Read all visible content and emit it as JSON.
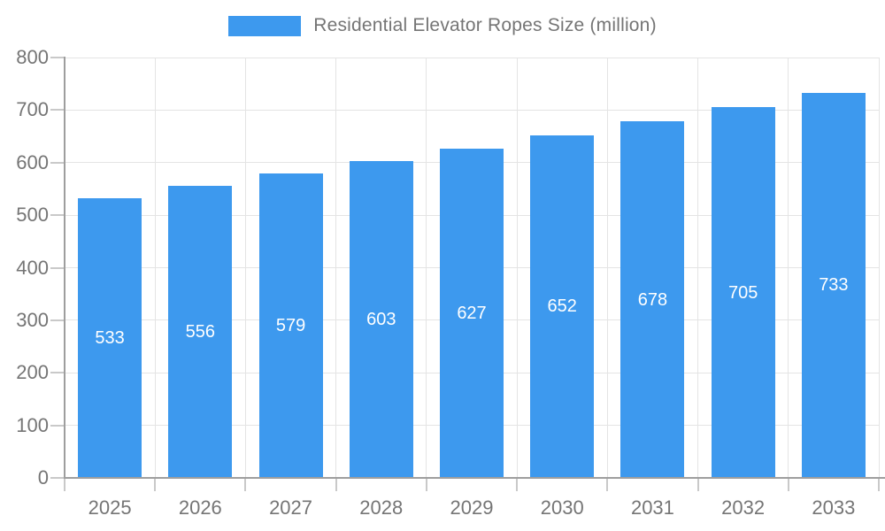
{
  "legend": {
    "label": "Residential Elevator Ropes Size (million)"
  },
  "chart_data": {
    "type": "bar",
    "title": "Residential Elevator Ropes Size (million)",
    "categories": [
      "2025",
      "2026",
      "2027",
      "2028",
      "2029",
      "2030",
      "2031",
      "2032",
      "2033"
    ],
    "values": [
      533,
      556,
      579,
      603,
      627,
      652,
      678,
      705,
      733
    ],
    "xlabel": "",
    "ylabel": "",
    "ylim": [
      0,
      800
    ],
    "ytick_step": 100,
    "yticks": [
      0,
      100,
      200,
      300,
      400,
      500,
      600,
      700,
      800
    ],
    "grid": true,
    "legend_position": "top-center",
    "value_label_position": "inside-middle",
    "colors": {
      "bar": "#3D99EE",
      "axis_line": "#9e9e9e",
      "gridline": "#e4e4e4",
      "tick": "#c9c9c9",
      "axis_label": "#757575",
      "value_label": "#ffffff",
      "background": "#ffffff"
    }
  }
}
